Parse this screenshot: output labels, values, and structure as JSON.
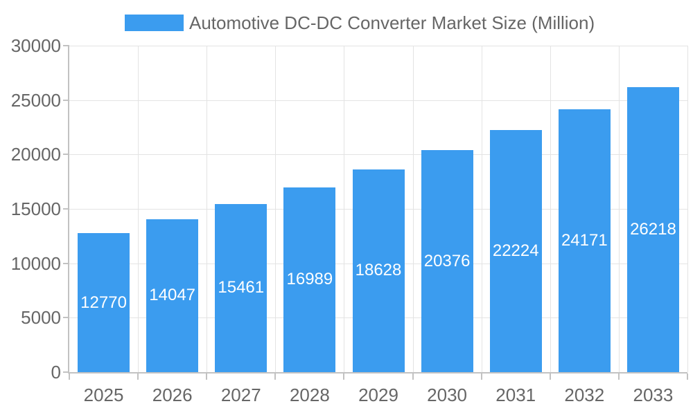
{
  "legend": {
    "label": "Automotive DC-DC Converter Market Size (Million)"
  },
  "chart_data": {
    "type": "bar",
    "title": "Automotive DC-DC Converter Market Size (Million)",
    "categories": [
      "2025",
      "2026",
      "2027",
      "2028",
      "2029",
      "2030",
      "2031",
      "2032",
      "2033"
    ],
    "series": [
      {
        "name": "Automotive DC-DC Converter Market Size (Million)",
        "values": [
          12770,
          14047,
          15461,
          16989,
          18628,
          20376,
          22224,
          24171,
          26218
        ]
      }
    ],
    "xlabel": "",
    "ylabel": "",
    "ylim": [
      0,
      30000
    ],
    "yticks": [
      0,
      5000,
      10000,
      15000,
      20000,
      25000,
      30000
    ],
    "grid": true,
    "legend_position": "top",
    "value_labels": "inside-center"
  },
  "colors": {
    "bar": "#3B9CEF",
    "grid": "#e3e3e3",
    "axis": "#c2c2c2",
    "tick_text": "#666666",
    "legend_text": "#666666",
    "bar_label_text": "#ffffff",
    "background": "#ffffff"
  }
}
